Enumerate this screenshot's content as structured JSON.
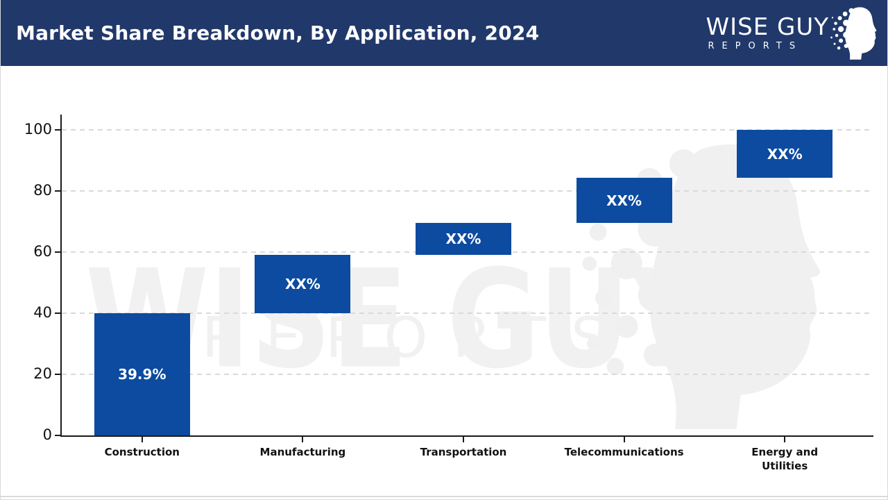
{
  "header": {
    "title": "Market Share Breakdown, By Application, 2024",
    "logo": {
      "line1": "WISE GUY",
      "line2": "REPORTS"
    }
  },
  "watermark": {
    "line1": "WISE GUY",
    "line2": "REPORTS"
  },
  "colors": {
    "header_bg": "#21386A",
    "bar": "#0C4BA0",
    "bar_label": "#FFFFFF",
    "grid": "#D9D9D9",
    "axis": "#1A1A1A",
    "watermark": "#F1F1F1"
  },
  "chart_data": {
    "type": "bar",
    "subtype": "waterfall",
    "title": "Market Share Breakdown, By Application, 2024",
    "categories": [
      "Construction",
      "Manufacturing",
      "Transportation",
      "Telecommunications",
      "Energy and\nUtilities"
    ],
    "segments": [
      {
        "category": "Construction",
        "start": 0,
        "end": 39.9,
        "label": "39.9%"
      },
      {
        "category": "Manufacturing",
        "start": 39.9,
        "end": 59.0,
        "label": "XX%"
      },
      {
        "category": "Transportation",
        "start": 59.0,
        "end": 69.5,
        "label": "XX%"
      },
      {
        "category": "Telecommunications",
        "start": 69.5,
        "end": 84.3,
        "label": "XX%"
      },
      {
        "category": "Energy and Utilities",
        "start": 84.3,
        "end": 100.0,
        "label": "XX%"
      }
    ],
    "xlabel": "",
    "ylabel": "",
    "ylim": [
      0,
      100
    ],
    "yticks": [
      0,
      20,
      40,
      60,
      80,
      100
    ],
    "grid": "horizontal-dashed",
    "legend": "none",
    "bar_color": "#0C4BA0"
  }
}
